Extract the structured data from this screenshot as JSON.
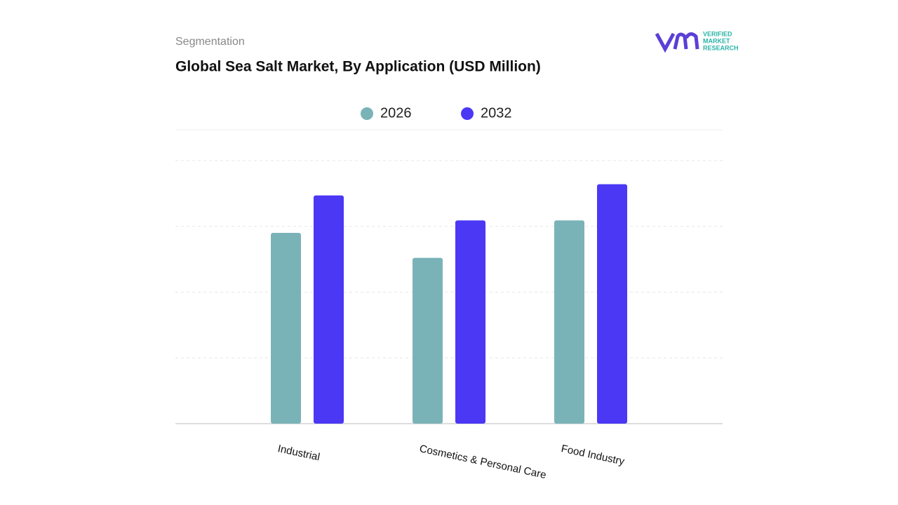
{
  "header": {
    "section": "Segmentation",
    "logo_lines": [
      "VERIFIED",
      "MARKET",
      "RESEARCH"
    ]
  },
  "chart_data": {
    "type": "bar",
    "title": "Global Sea Salt Market, By Application (USD Million)",
    "categories": [
      "Industrial",
      "Cosmetics & Personal Care",
      "Food Industry"
    ],
    "series": [
      {
        "name": "2026",
        "color": "#7ab3b7",
        "values": [
          2.9,
          2.52,
          3.09
        ]
      },
      {
        "name": "2032",
        "color": "#4b38f5",
        "values": [
          3.47,
          3.09,
          3.64
        ]
      }
    ],
    "ylim": [
      0,
      4.5
    ],
    "yticks": [
      0,
      1,
      2,
      3,
      4
    ],
    "grid": true,
    "legend": "top"
  }
}
